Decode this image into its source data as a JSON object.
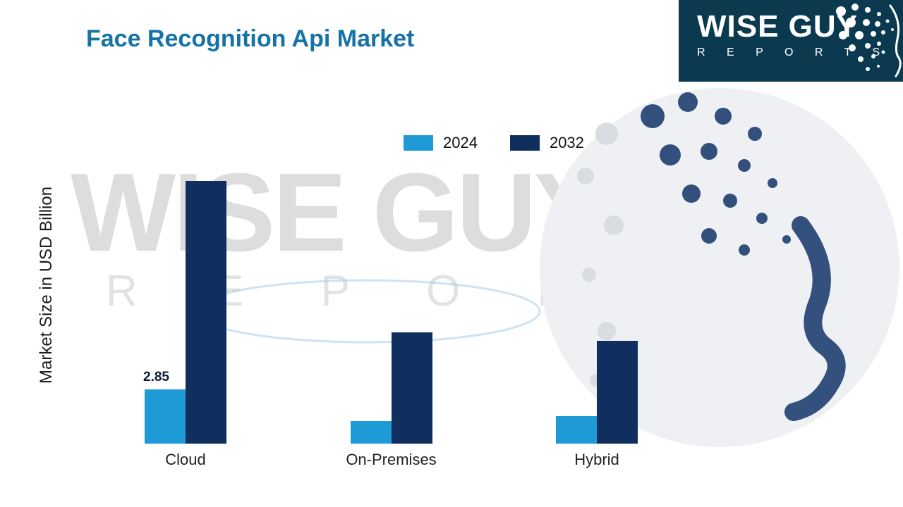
{
  "title": {
    "text": "Face Recognition Api Market",
    "color": "#1673a5"
  },
  "logo": {
    "brand_top": "WISE GUY",
    "brand_bottom": "R E P O R T S",
    "bg_color": "#0b3a50"
  },
  "watermark": {
    "line1": "WISE GUY",
    "line2": "R E P O R T S"
  },
  "chart_data": {
    "type": "bar",
    "categories": [
      "Cloud",
      "On-Premises",
      "Hybrid"
    ],
    "series": [
      {
        "name": "2024",
        "color": "#1e9bd7",
        "values": [
          2.85,
          1.2,
          1.45
        ]
      },
      {
        "name": "2032",
        "color": "#102e5e",
        "values": [
          13.8,
          5.85,
          5.4
        ]
      }
    ],
    "annotations": [
      {
        "category": "Cloud",
        "series": "2024",
        "text": "2.85"
      }
    ],
    "ylabel": "Market Size in USD Billion",
    "xlabel": "",
    "ylim": [
      0,
      14
    ],
    "grid": false,
    "legend_position": "top-center"
  }
}
